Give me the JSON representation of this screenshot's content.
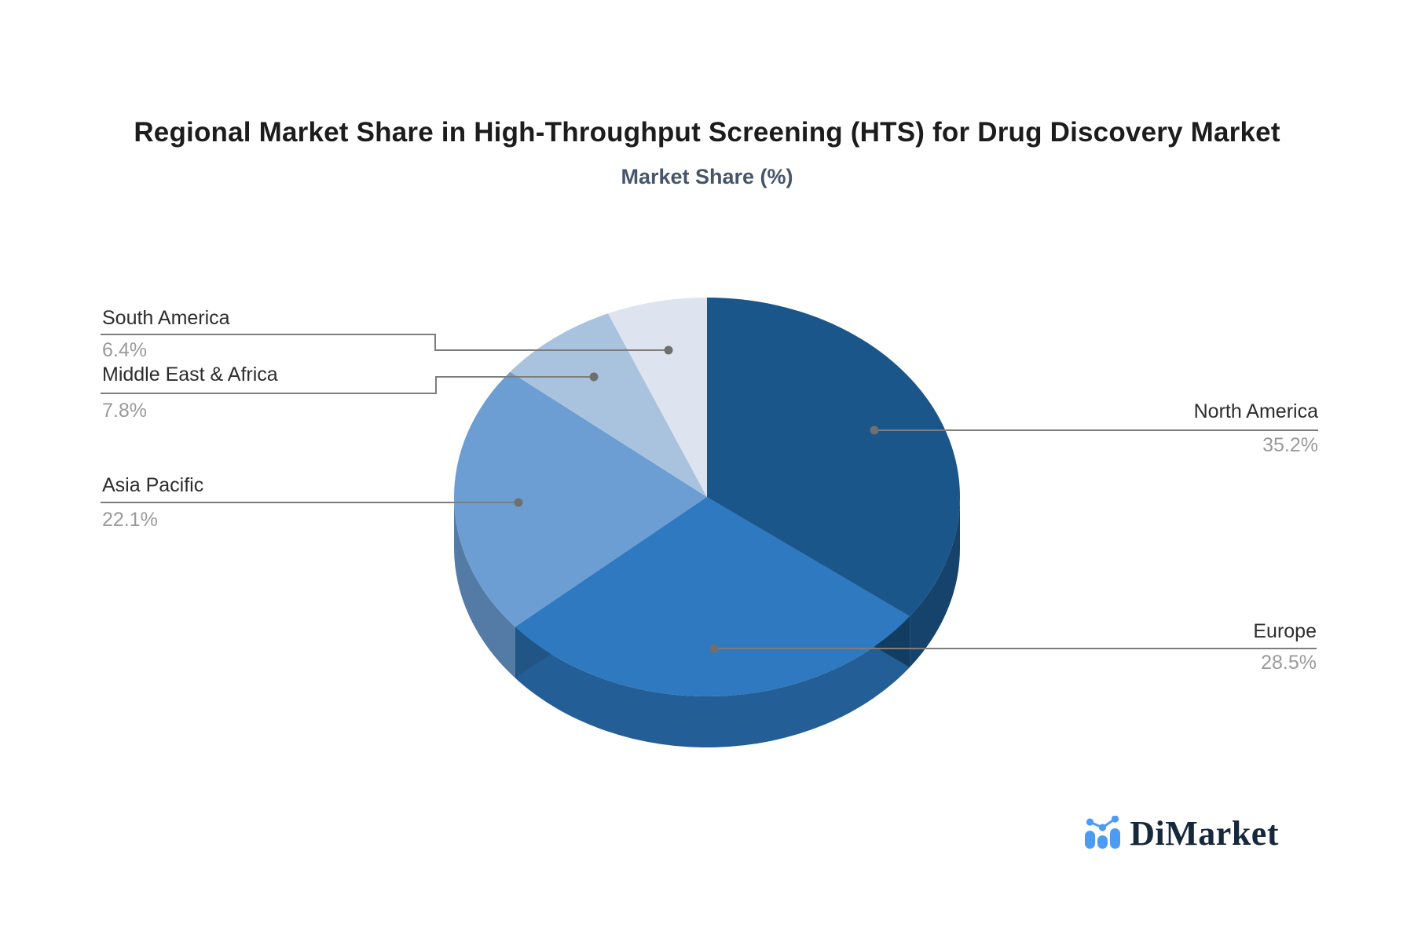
{
  "header": {
    "title": "Regional Market Share in High-Throughput Screening (HTS) for Drug Discovery Market",
    "subtitle": "Market Share (%)"
  },
  "chart_data": {
    "type": "pie",
    "style": "3d-pie",
    "title": "Market Share (%)",
    "unit": "%",
    "direction": "clockwise",
    "start_angle": "12-oclock",
    "legend_position": "none",
    "slices": [
      {
        "label": "North America",
        "value": 35.2,
        "pct_label": "35.2%",
        "color": "#1B568B"
      },
      {
        "label": "Europe",
        "value": 28.5,
        "pct_label": "28.5%",
        "color": "#2E79C0"
      },
      {
        "label": "Asia Pacific",
        "value": 22.1,
        "pct_label": "22.1%",
        "color": "#6C9ED3"
      },
      {
        "label": "Middle East & Africa",
        "value": 7.8,
        "pct_label": "7.8%",
        "color": "#A9C3DE"
      },
      {
        "label": "South America",
        "value": 6.4,
        "pct_label": "6.4%",
        "color": "#DEE4EF"
      }
    ],
    "label_name_color": "#2d2d2d",
    "label_value_color": "#9a9a9a",
    "leader_line_color": "#7d7d7d"
  },
  "logo": {
    "text": "DiMarket",
    "icon": "bar-line-chart-icon",
    "icon_color": "#4d9cf4",
    "text_color": "#16293c"
  }
}
